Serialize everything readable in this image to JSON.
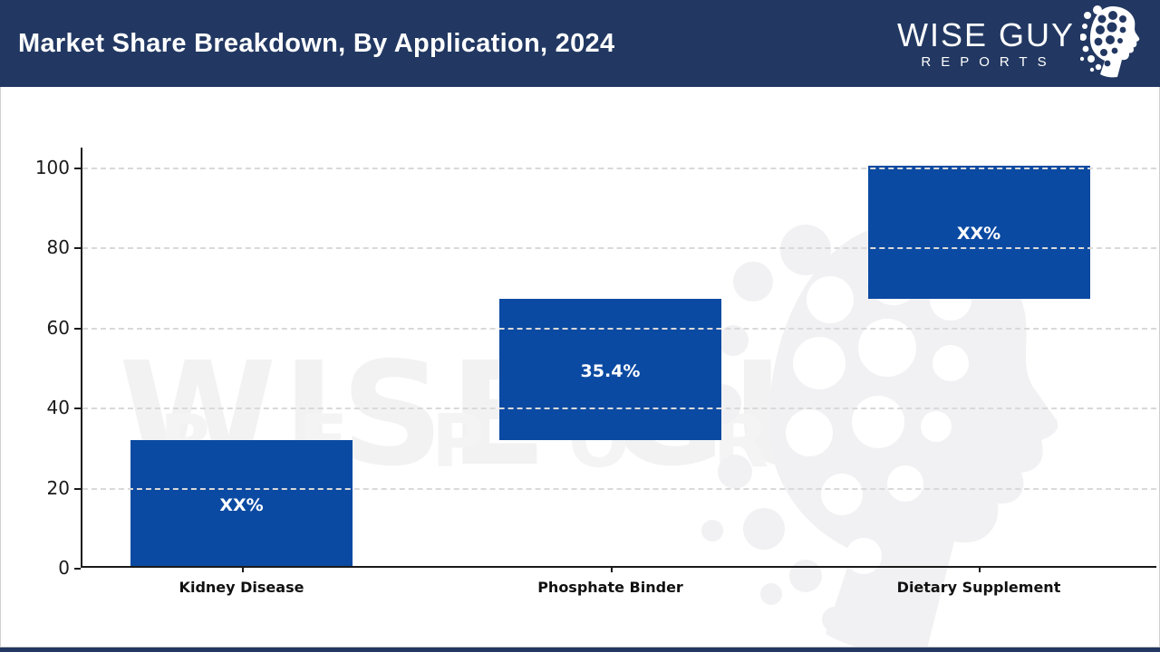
{
  "header": {
    "title": "Market Share Breakdown, By Application, 2024",
    "bg_color": "#223862",
    "logo": {
      "line1": "WISE GUY",
      "line2": "REPORTS"
    }
  },
  "watermark": {
    "line1": "WISE GUY",
    "line2": "REPORTS"
  },
  "chart_data": {
    "type": "bar",
    "subtype": "floating-waterfall",
    "title": "Market Share Breakdown, By Application, 2024",
    "categories": [
      "Kidney Disease",
      "Phosphate Binder",
      "Dietary Supplement"
    ],
    "segments": [
      {
        "category": "Kidney Disease",
        "start": 0,
        "end": 31.4,
        "label": "XX%"
      },
      {
        "category": "Phosphate Binder",
        "start": 31.4,
        "end": 66.8,
        "label": "35.4%"
      },
      {
        "category": "Dietary Supplement",
        "start": 66.8,
        "end": 100,
        "label": "XX%"
      }
    ],
    "yticks": [
      0,
      20,
      40,
      60,
      80,
      100
    ],
    "ylim": [
      0,
      100
    ],
    "xlabel": "",
    "ylabel": "",
    "grid": "dashed-horizontal",
    "legend": "none",
    "bar_color": "#0b4aa2",
    "grid_color": "#d9d9d9"
  }
}
